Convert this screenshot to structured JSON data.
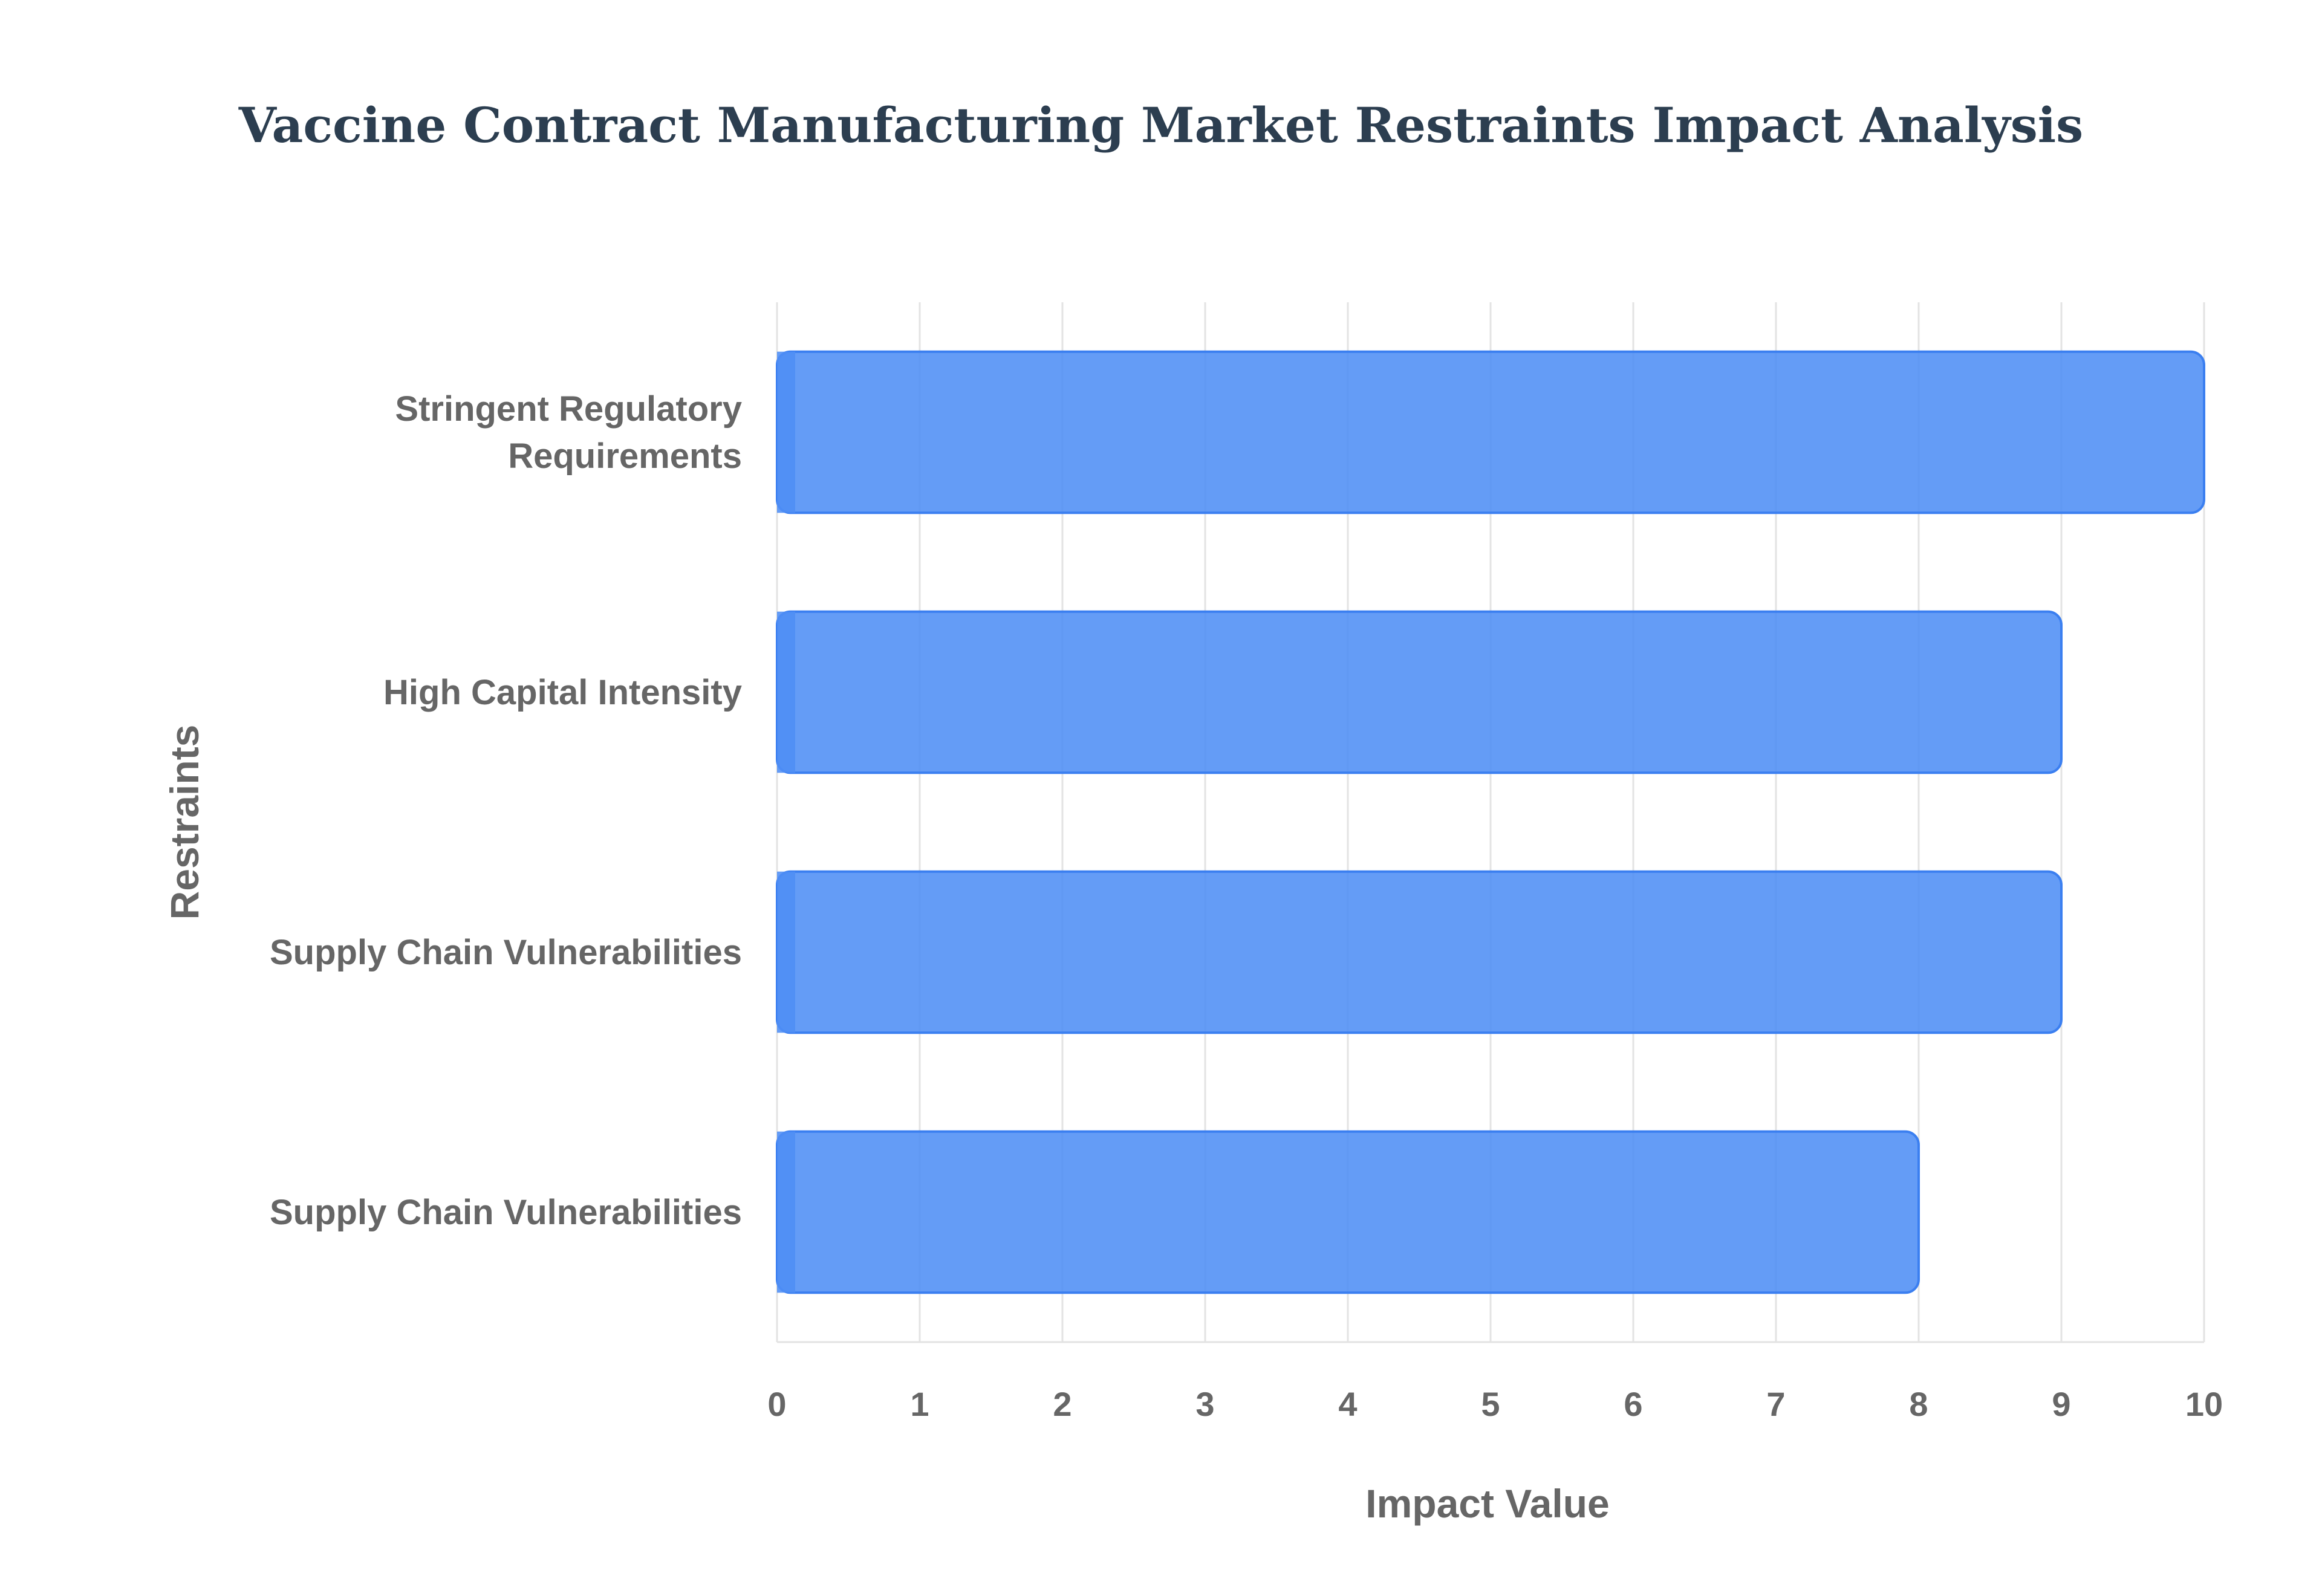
{
  "chart_data": {
    "type": "bar",
    "orientation": "horizontal",
    "title": "Vaccine Contract Manufacturing Market Restraints Impact Analysis",
    "xlabel": "Impact Value",
    "ylabel": "Restraints",
    "categories": [
      "Stringent Regulatory Requirements",
      "High Capital Intensity",
      "Supply Chain Vulnerabilities",
      "Supply Chain Vulnerabilities"
    ],
    "values": [
      10,
      9,
      9,
      8
    ],
    "xlim": [
      0,
      10
    ],
    "xticks": [
      0,
      1,
      2,
      3,
      4,
      5,
      6,
      7,
      8,
      9,
      10
    ],
    "grid": true,
    "bar_color": "#4f8ef5",
    "bar_border_color": "#3b7ff0"
  }
}
